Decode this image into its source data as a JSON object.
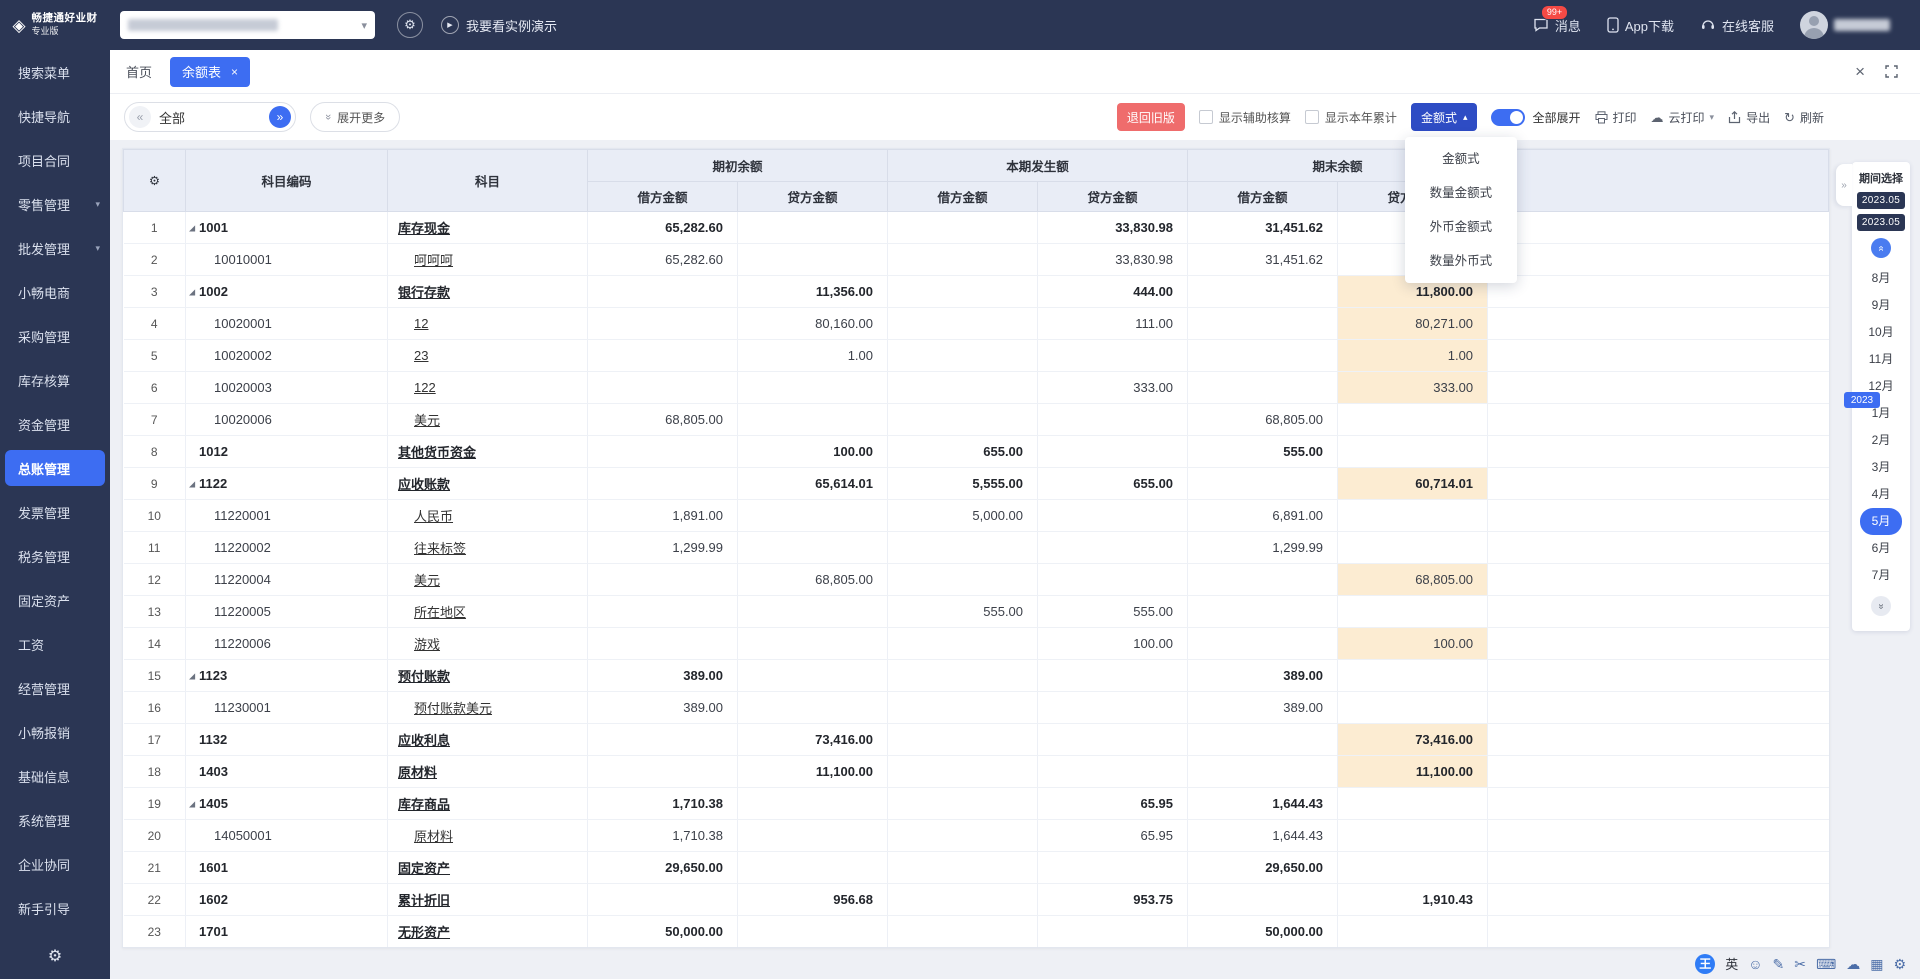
{
  "topbar": {
    "logo_title": "畅捷通好业财",
    "logo_subtitle": "专业版",
    "demo_label": "我要看实例演示",
    "messages_label": "消息",
    "messages_badge": "99+",
    "app_download_label": "App下载",
    "online_service_label": "在线客服"
  },
  "sidebar": {
    "items": [
      {
        "label": "搜索菜单"
      },
      {
        "label": "快捷导航"
      },
      {
        "label": "项目合同"
      },
      {
        "label": "零售管理",
        "caret": true
      },
      {
        "label": "批发管理",
        "caret": true
      },
      {
        "label": "小畅电商"
      },
      {
        "label": "采购管理"
      },
      {
        "label": "库存核算"
      },
      {
        "label": "资金管理"
      },
      {
        "label": "总账管理",
        "active": true
      },
      {
        "label": "发票管理"
      },
      {
        "label": "税务管理"
      },
      {
        "label": "固定资产"
      },
      {
        "label": "工资"
      },
      {
        "label": "经营管理"
      },
      {
        "label": "小畅报销"
      },
      {
        "label": "基础信息"
      },
      {
        "label": "系统管理"
      },
      {
        "label": "企业协同"
      },
      {
        "label": "新手引导"
      }
    ]
  },
  "tabbar": {
    "home_tab": "首页",
    "active_tab": "余额表"
  },
  "toolbar": {
    "scope_value": "全部",
    "expand_more_label": "展开更多",
    "return_old_label": "退回旧版",
    "show_aux_label": "显示辅助核算",
    "show_ytd_label": "显示本年累计",
    "format_label": "金额式",
    "expand_all_label": "全部展开",
    "print_label": "打印",
    "cloud_print_label": "云打印",
    "export_label": "导出",
    "refresh_label": "刷新"
  },
  "format_menu": {
    "items": [
      "金额式",
      "数量金额式",
      "外币金额式",
      "数量外币式"
    ]
  },
  "period_panel": {
    "title": "期间选择",
    "period_from": "2023.05",
    "period_to": "2023.05",
    "year_badge": "2023",
    "months": [
      "8月",
      "9月",
      "10月",
      "11月",
      "12月",
      "1月",
      "2月",
      "3月",
      "4月",
      "5月",
      "6月",
      "7月"
    ],
    "active_month": "5月"
  },
  "table": {
    "headers": {
      "code": "科目编码",
      "name": "科目",
      "opening": "期初余额",
      "current": "本期发生额",
      "ending": "期末余额",
      "debit": "借方金额",
      "credit": "贷方金额"
    },
    "cell_keys": [
      "opening-debit",
      "opening-credit",
      "current-debit",
      "current-credit",
      "ending-debit",
      "ending-credit"
    ],
    "rows": [
      {
        "num": 1,
        "code": "1001",
        "name": "库存现金",
        "bold": true,
        "expand": true,
        "child": false,
        "cells": [
          "65,282.60",
          "",
          "",
          "33,830.98",
          "31,451.62",
          ""
        ],
        "highlight_last": false
      },
      {
        "num": 2,
        "code": "10010001",
        "name": "呵呵呵",
        "bold": false,
        "expand": false,
        "child": true,
        "cells": [
          "65,282.60",
          "",
          "",
          "33,830.98",
          "31,451.62",
          ""
        ],
        "highlight_last": false
      },
      {
        "num": 3,
        "code": "1002",
        "name": "银行存款",
        "bold": true,
        "expand": true,
        "child": false,
        "cells": [
          "",
          "11,356.00",
          "",
          "444.00",
          "",
          "11,800.00"
        ],
        "highlight_last": true
      },
      {
        "num": 4,
        "code": "10020001",
        "name": "12",
        "bold": false,
        "expand": false,
        "child": true,
        "cells": [
          "",
          "80,160.00",
          "",
          "111.00",
          "",
          "80,271.00"
        ],
        "highlight_last": true
      },
      {
        "num": 5,
        "code": "10020002",
        "name": "23",
        "bold": false,
        "expand": false,
        "child": true,
        "cells": [
          "",
          "1.00",
          "",
          "",
          "",
          "1.00"
        ],
        "highlight_last": true
      },
      {
        "num": 6,
        "code": "10020003",
        "name": "122",
        "bold": false,
        "expand": false,
        "child": true,
        "cells": [
          "",
          "",
          "",
          "333.00",
          "",
          "333.00"
        ],
        "highlight_last": true
      },
      {
        "num": 7,
        "code": "10020006",
        "name": "美元",
        "bold": false,
        "expand": false,
        "child": true,
        "cells": [
          "68,805.00",
          "",
          "",
          "",
          "68,805.00",
          ""
        ],
        "highlight_last": false
      },
      {
        "num": 8,
        "code": "1012",
        "name": "其他货币资金",
        "bold": true,
        "expand": false,
        "child": false,
        "cells": [
          "",
          "100.00",
          "655.00",
          "",
          "555.00",
          ""
        ],
        "highlight_last": false
      },
      {
        "num": 9,
        "code": "1122",
        "name": "应收账款",
        "bold": true,
        "expand": true,
        "child": false,
        "cells": [
          "",
          "65,614.01",
          "5,555.00",
          "655.00",
          "",
          "60,714.01"
        ],
        "highlight_last": true
      },
      {
        "num": 10,
        "code": "11220001",
        "name": "人民币",
        "bold": false,
        "expand": false,
        "child": true,
        "cells": [
          "1,891.00",
          "",
          "5,000.00",
          "",
          "6,891.00",
          ""
        ],
        "highlight_last": false
      },
      {
        "num": 11,
        "code": "11220002",
        "name": "往来标签",
        "bold": false,
        "expand": false,
        "child": true,
        "cells": [
          "1,299.99",
          "",
          "",
          "",
          "1,299.99",
          ""
        ],
        "highlight_last": false
      },
      {
        "num": 12,
        "code": "11220004",
        "name": "美元",
        "bold": false,
        "expand": false,
        "child": true,
        "cells": [
          "",
          "68,805.00",
          "",
          "",
          "",
          "68,805.00"
        ],
        "highlight_last": true
      },
      {
        "num": 13,
        "code": "11220005",
        "name": "所在地区",
        "bold": false,
        "expand": false,
        "child": true,
        "cells": [
          "",
          "",
          "555.00",
          "555.00",
          "",
          ""
        ],
        "highlight_last": false
      },
      {
        "num": 14,
        "code": "11220006",
        "name": "游戏",
        "bold": false,
        "expand": false,
        "child": true,
        "cells": [
          "",
          "",
          "",
          "100.00",
          "",
          "100.00"
        ],
        "highlight_last": true
      },
      {
        "num": 15,
        "code": "1123",
        "name": "预付账款",
        "bold": true,
        "expand": true,
        "child": false,
        "cells": [
          "389.00",
          "",
          "",
          "",
          "389.00",
          ""
        ],
        "highlight_last": false
      },
      {
        "num": 16,
        "code": "11230001",
        "name": "预付账款美元",
        "bold": false,
        "expand": false,
        "child": true,
        "cells": [
          "389.00",
          "",
          "",
          "",
          "389.00",
          ""
        ],
        "highlight_last": false
      },
      {
        "num": 17,
        "code": "1132",
        "name": "应收利息",
        "bold": true,
        "expand": false,
        "child": false,
        "cells": [
          "",
          "73,416.00",
          "",
          "",
          "",
          "73,416.00"
        ],
        "highlight_last": true
      },
      {
        "num": 18,
        "code": "1403",
        "name": "原材料",
        "bold": true,
        "expand": false,
        "child": false,
        "cells": [
          "",
          "11,100.00",
          "",
          "",
          "",
          "11,100.00"
        ],
        "highlight_last": true
      },
      {
        "num": 19,
        "code": "1405",
        "name": "库存商品",
        "bold": true,
        "expand": true,
        "child": false,
        "cells": [
          "1,710.38",
          "",
          "",
          "65.95",
          "1,644.43",
          ""
        ],
        "highlight_last": false
      },
      {
        "num": 20,
        "code": "14050001",
        "name": "原材料",
        "bold": false,
        "expand": false,
        "child": true,
        "cells": [
          "1,710.38",
          "",
          "",
          "65.95",
          "1,644.43",
          ""
        ],
        "highlight_last": false
      },
      {
        "num": 21,
        "code": "1601",
        "name": "固定资产",
        "bold": true,
        "expand": false,
        "child": false,
        "cells": [
          "29,650.00",
          "",
          "",
          "",
          "29,650.00",
          ""
        ],
        "highlight_last": false
      },
      {
        "num": 22,
        "code": "1602",
        "name": "累计折旧",
        "bold": true,
        "expand": false,
        "child": false,
        "cells": [
          "",
          "956.68",
          "",
          "953.75",
          "",
          "1,910.43"
        ],
        "highlight_last": false
      },
      {
        "num": 23,
        "code": "1701",
        "name": "无形资产",
        "bold": true,
        "expand": false,
        "child": false,
        "cells": [
          "50,000.00",
          "",
          "",
          "",
          "50,000.00",
          ""
        ],
        "highlight_last": false
      }
    ]
  },
  "ime_bar": {
    "items": [
      {
        "name": "ime-logo-icon",
        "glyph": "王",
        "style": "logo"
      },
      {
        "name": "ime-lang-indicator",
        "glyph": "英",
        "style": "txt"
      },
      {
        "name": "emoji-icon",
        "glyph": "☺",
        "style": ""
      },
      {
        "name": "pen-icon",
        "glyph": "✎",
        "style": ""
      },
      {
        "name": "scissors-icon",
        "glyph": "✂",
        "style": ""
      },
      {
        "name": "keyboard-icon",
        "glyph": "⌨",
        "style": ""
      },
      {
        "name": "cloud-icon",
        "glyph": "☁",
        "style": ""
      },
      {
        "name": "toolbox-icon",
        "glyph": "▦",
        "style": ""
      },
      {
        "name": "gear-icon",
        "glyph": "⚙",
        "style": ""
      }
    ]
  },
  "icons": {
    "gear": "⚙",
    "chevron_down": "▾",
    "chevron_up": "▴",
    "double_left": "«",
    "double_right": "»",
    "close": "×",
    "refresh": "↻",
    "cloud": "☁",
    "triangle": "◢",
    "play": "▶",
    "logo": "◈"
  },
  "colors": {
    "accent_blue": "#3d6df2",
    "dark_navy": "#2b3654",
    "danger_red": "#ef6c6c",
    "deep_blue": "#2e4cc4",
    "highlight_orange": "#fcecd2",
    "badge_red": "#f54a45"
  }
}
